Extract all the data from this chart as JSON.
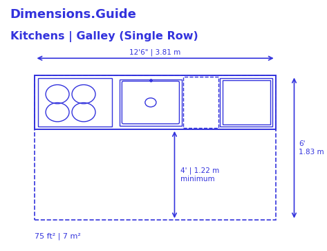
{
  "title_line1": "Dimensions.Guide",
  "title_line2": "Kitchens | Galley (Single Row)",
  "blue_color": "#3333dd",
  "bg_color": "#ffffff",
  "area_label": "75 ft² | 7 m²",
  "width_label": "12'6\" | 3.81 m",
  "height_label": "6'\n1.83 m",
  "clearance_label": "4' | 1.22 m\nminimum"
}
